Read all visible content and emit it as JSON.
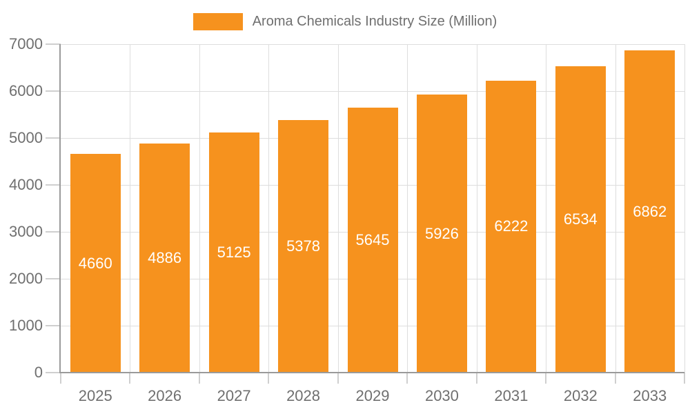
{
  "chart_data": {
    "type": "bar",
    "legend": "Aroma Chemicals Industry Size (Million)",
    "legend_position": "top-center",
    "categories": [
      "2025",
      "2026",
      "2027",
      "2028",
      "2029",
      "2030",
      "2031",
      "2032",
      "2033"
    ],
    "values": [
      4660,
      4886,
      5125,
      5378,
      5645,
      5926,
      6222,
      6534,
      6862
    ],
    "value_labels_shown": true,
    "value_label_position": "inside-middle",
    "xlabel": "",
    "ylabel": "",
    "ylim": [
      0,
      7000
    ],
    "ytick_step": 1000,
    "yticks": [
      "0",
      "1000",
      "2000",
      "3000",
      "4000",
      "5000",
      "6000",
      "7000"
    ],
    "grid": "both",
    "colors": {
      "bar": "#F6921E",
      "grid": "#DDDDDD",
      "axis": "#9A9A9A",
      "tick": "#CFCFCF",
      "label_text": "#6F6F6F",
      "value_label": "#FFFFFF",
      "background": "#FFFFFF"
    }
  }
}
